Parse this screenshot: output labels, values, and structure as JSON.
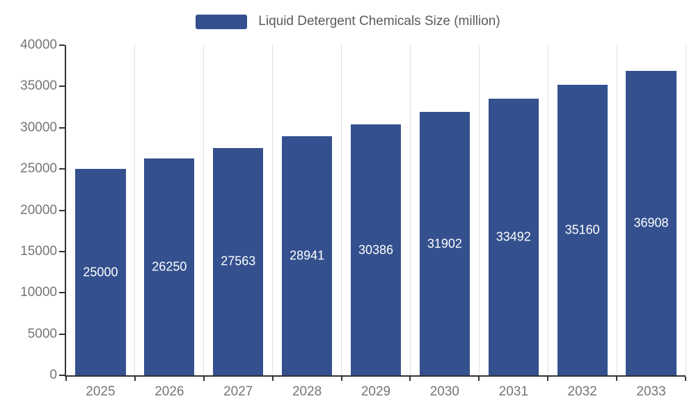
{
  "legend": {
    "label": "Liquid Detergent Chemicals Size (million)",
    "swatch_color": "#34508e"
  },
  "chart_data": {
    "type": "bar",
    "title": "Liquid Detergent Chemicals Size (million)",
    "categories": [
      "2025",
      "2026",
      "2027",
      "2028",
      "2029",
      "2030",
      "2031",
      "2032",
      "2033"
    ],
    "values": [
      25000,
      26250,
      27563,
      28941,
      30386,
      31902,
      33492,
      35160,
      36908
    ],
    "xlabel": "",
    "ylabel": "",
    "ylim": [
      0,
      40000
    ],
    "yticks": [
      0,
      5000,
      10000,
      15000,
      20000,
      25000,
      30000,
      35000,
      40000
    ],
    "bar_color": "#34508e",
    "value_label_color": "#ffffff",
    "axis_label_color": "#757575",
    "grid": "vertical-only",
    "legend_position": "top-center"
  }
}
